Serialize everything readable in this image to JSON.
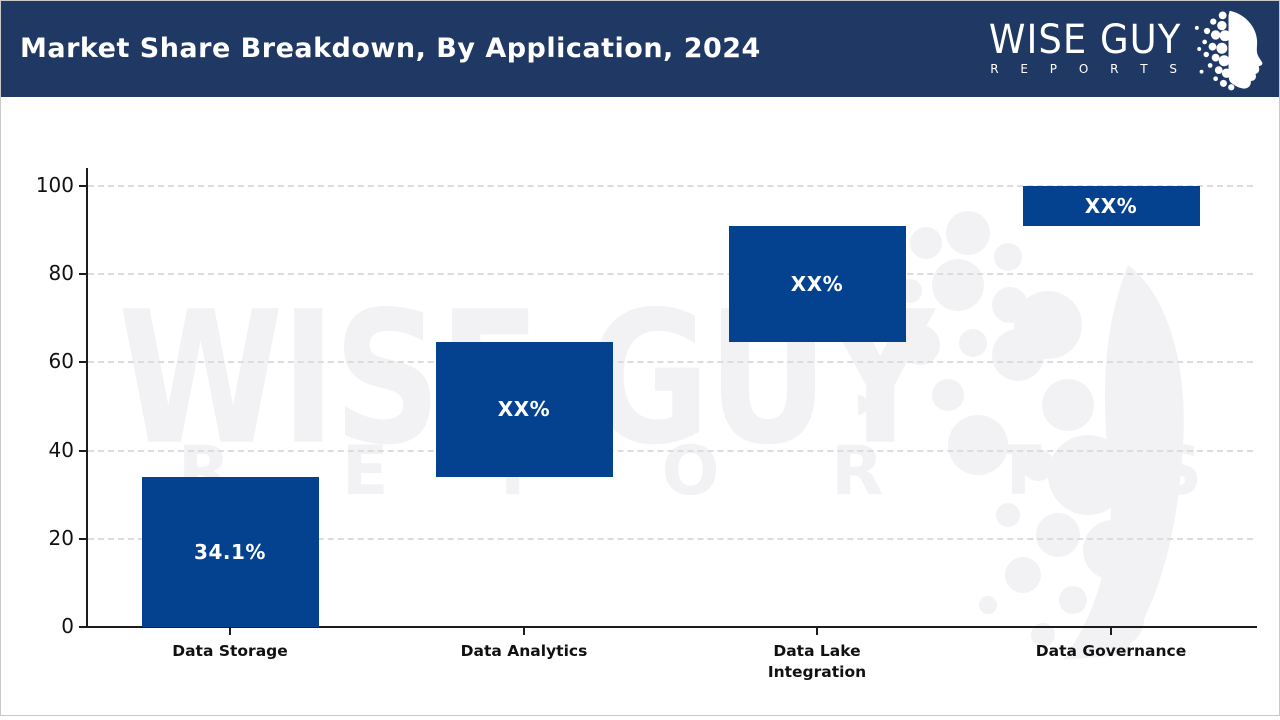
{
  "header": {
    "title": "Market Share Breakdown, By Application, 2024",
    "logo": {
      "line1": "WISE GUY",
      "line2": "R E P O R T S"
    }
  },
  "watermark": {
    "line1": "WISE GUY",
    "line2": "R E P O R T S"
  },
  "colors": {
    "header_bg": "#1f3864",
    "bar": "#04418f",
    "bar_label": "#ffffff",
    "grid": "#dcdcdc",
    "axis": "#1c1c1c",
    "watermark": "#f2f2f5",
    "frame_border": "#c9c9c9"
  },
  "chart_data": {
    "type": "bar",
    "subtype": "waterfall",
    "title": "Market Share Breakdown, By Application, 2024",
    "categories": [
      "Data Storage",
      "Data Analytics",
      "Data Lake\nIntegration",
      "Data Governance"
    ],
    "segments": [
      {
        "category": "Data Storage",
        "start": 0,
        "end": 34.1,
        "label": "34.1%"
      },
      {
        "category": "Data Analytics",
        "start": 34.1,
        "end": 64.6,
        "label": "XX%"
      },
      {
        "category": "Data Lake Integration",
        "start": 64.6,
        "end": 90.9,
        "label": "XX%"
      },
      {
        "category": "Data Governance",
        "start": 90.9,
        "end": 100,
        "label": "XX%"
      }
    ],
    "yticks": [
      0,
      20,
      40,
      60,
      80,
      100
    ],
    "ylim": [
      0,
      104
    ],
    "xlabel": "",
    "ylabel": "",
    "grid": "dashed-horizontal",
    "legend": "none"
  }
}
